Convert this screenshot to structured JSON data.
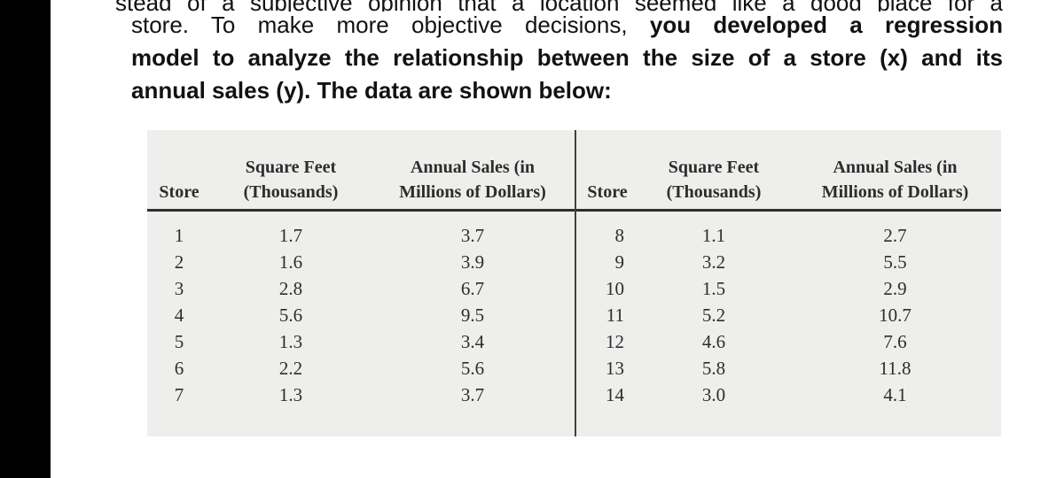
{
  "colors": {
    "page_bg": "#ffffff",
    "left_bar": "#000000",
    "body_text": "#121212",
    "table_bg": "#eeeeec",
    "table_text": "#2d2d2d",
    "table_rule": "#2e2e2e"
  },
  "paragraph": {
    "clipped_line": "stead of a subjective opinion that a location seemed like a good place for a",
    "line1_regular": "store. To make more objective decisions, ",
    "line1_bold": "you developed a regression",
    "line2_bold": "model to analyze the relationship between the size of a store (x) and its",
    "line3_bold": "annual sales (y). The data are shown below:"
  },
  "table": {
    "headers": {
      "store": "Store",
      "sqft_line1": "Square Feet",
      "sqft_line2": "(Thousands)",
      "sales_line1": "Annual Sales (in",
      "sales_line2": "Millions of Dollars)"
    },
    "left_rows": [
      {
        "store": "1",
        "sqft": "1.7",
        "sales": "3.7"
      },
      {
        "store": "2",
        "sqft": "1.6",
        "sales": "3.9"
      },
      {
        "store": "3",
        "sqft": "2.8",
        "sales": "6.7"
      },
      {
        "store": "4",
        "sqft": "5.6",
        "sales": "9.5"
      },
      {
        "store": "5",
        "sqft": "1.3",
        "sales": "3.4"
      },
      {
        "store": "6",
        "sqft": "2.2",
        "sales": "5.6"
      },
      {
        "store": "7",
        "sqft": "1.3",
        "sales": "3.7"
      }
    ],
    "right_rows": [
      {
        "store": "8",
        "sqft": "1.1",
        "sales": "2.7"
      },
      {
        "store": "9",
        "sqft": "3.2",
        "sales": "5.5"
      },
      {
        "store": "10",
        "sqft": "1.5",
        "sales": "2.9"
      },
      {
        "store": "11",
        "sqft": "5.2",
        "sales": "10.7"
      },
      {
        "store": "12",
        "sqft": "4.6",
        "sales": "7.6"
      },
      {
        "store": "13",
        "sqft": "5.8",
        "sales": "11.8"
      },
      {
        "store": "14",
        "sqft": "3.0",
        "sales": "4.1"
      }
    ]
  }
}
